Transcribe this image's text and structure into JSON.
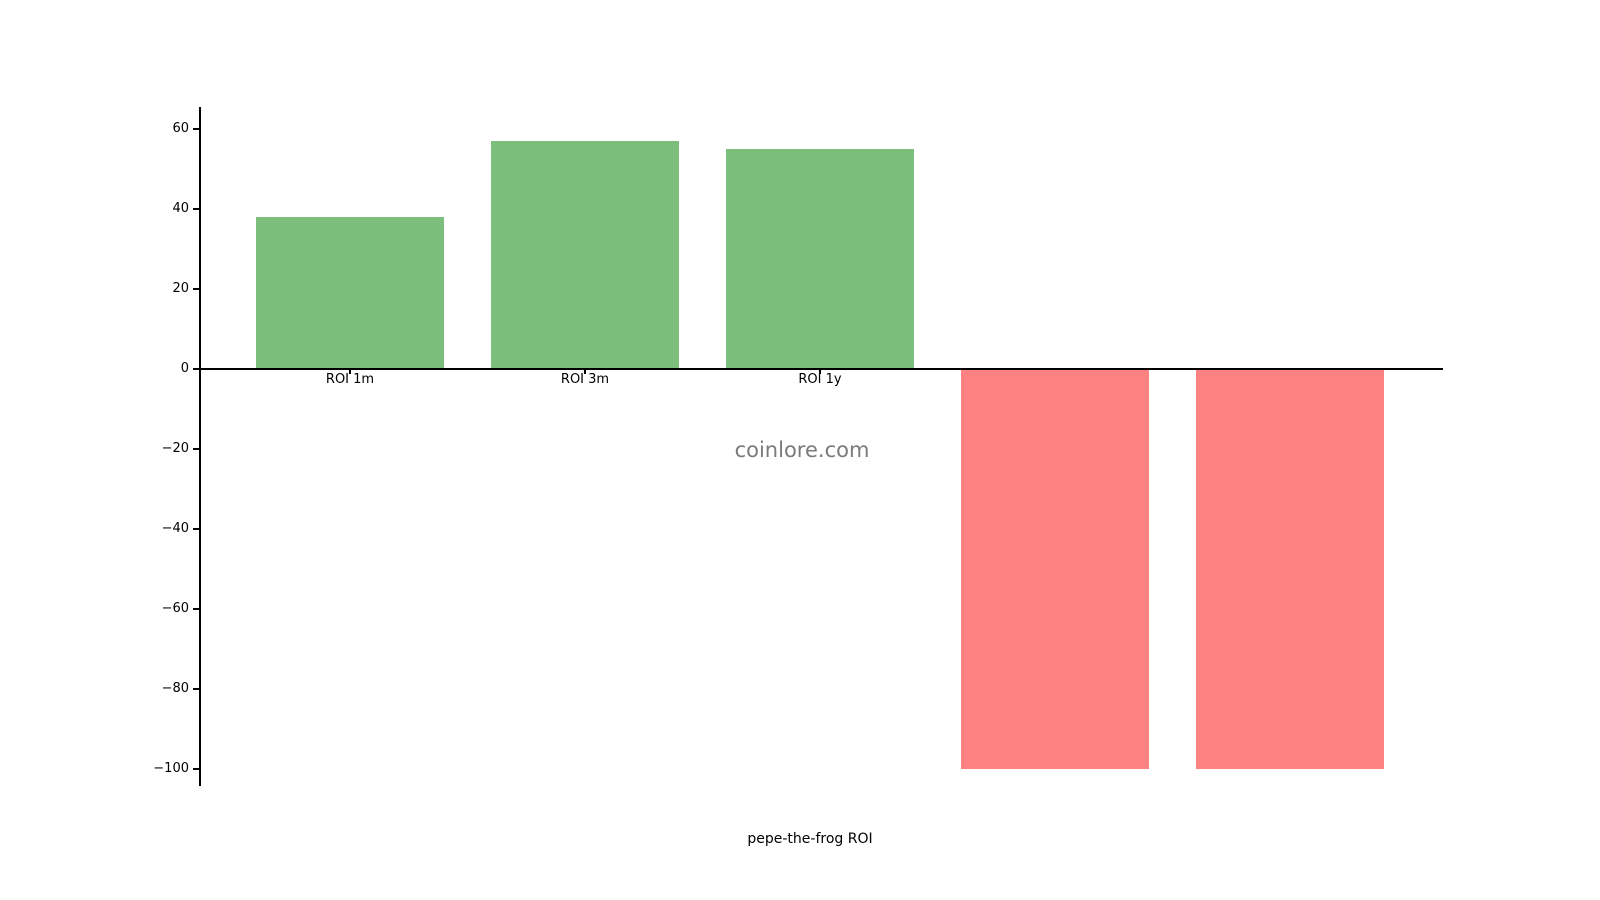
{
  "chart_data": {
    "type": "bar",
    "title": "pepe-the-frog ROI",
    "watermark": "coinlore.com",
    "categories": [
      "ROI 1m",
      "ROI 3m",
      "ROI 1y",
      "",
      ""
    ],
    "values": [
      38,
      57,
      55,
      -100,
      -100
    ],
    "yticks": [
      60,
      40,
      20,
      0,
      -20,
      -40,
      -60,
      -80,
      -100
    ],
    "ylim": [
      -104.5,
      65.5
    ],
    "xlabel": "",
    "ylabel": "",
    "grid": false,
    "legend_position": "none",
    "colors": {
      "positive_bar": "#7cbf7d",
      "negative_bar": "#fc8181",
      "axis": "#000000",
      "watermark_text": "#7b7b7b",
      "background": "#ffffff"
    }
  }
}
